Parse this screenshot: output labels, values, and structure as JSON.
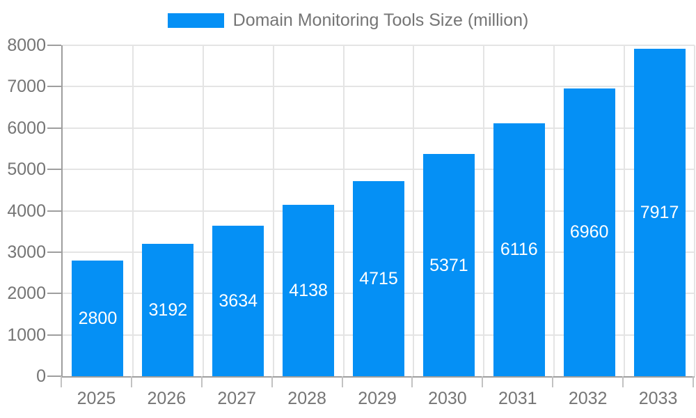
{
  "chart_data": {
    "type": "bar",
    "title": "Domain Monitoring Tools Size (million)",
    "legend": {
      "position": "top",
      "label": "Domain Monitoring Tools Size (million)"
    },
    "categories": [
      "2025",
      "2026",
      "2027",
      "2028",
      "2029",
      "2030",
      "2031",
      "2032",
      "2033"
    ],
    "values": [
      2800,
      3192,
      3634,
      4138,
      4715,
      5371,
      6116,
      6960,
      7917
    ],
    "xlabel": "",
    "ylabel": "",
    "ylim": [
      0,
      8000
    ],
    "yticks": [
      0,
      1000,
      2000,
      3000,
      4000,
      5000,
      6000,
      7000,
      8000
    ],
    "grid": true,
    "bar_value_labels_visible": true,
    "colors": {
      "bar": "#0590f5",
      "axis_line": "#9e9e9e",
      "gridline": "#e4e4e4",
      "x_tick": "#c2c2c2",
      "axis_label_text": "#757575",
      "bar_label_text": "#ffffff",
      "background": "#ffffff"
    }
  }
}
